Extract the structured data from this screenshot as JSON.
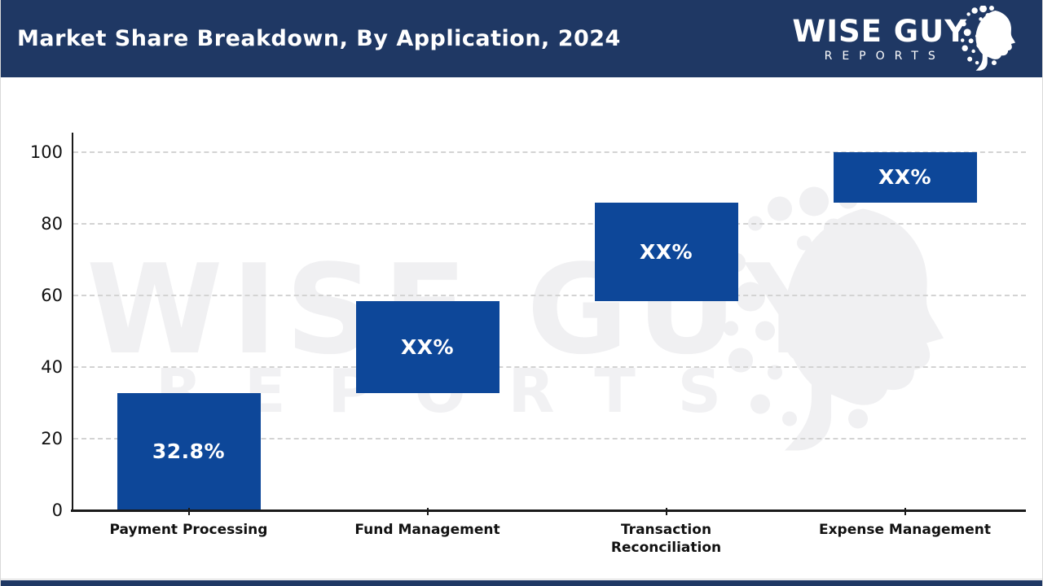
{
  "header": {
    "title": "Market Share Breakdown, By Application, 2024",
    "logo": {
      "name_line": "WISE GUY",
      "reports_line": "REPORTS"
    }
  },
  "watermark": {
    "name_line": "WISE GUY",
    "reports_line": "REPORTS"
  },
  "chart_data": {
    "type": "bar",
    "subtype": "waterfall market-share breakdown",
    "title": "Market Share Breakdown, By Application, 2024",
    "categories": [
      "Payment Processing",
      "Fund Management",
      "Transaction Reconciliation",
      "Expense Management"
    ],
    "segments": [
      {
        "category": "Payment Processing",
        "start": 0,
        "end": 32.8,
        "value_label": "32.8%"
      },
      {
        "category": "Fund Management",
        "start": 32.8,
        "end": 58.5,
        "value_label": "XX%"
      },
      {
        "category": "Transaction Reconciliation",
        "start": 58.5,
        "end": 86.0,
        "value_label": "XX%"
      },
      {
        "category": "Expense Management",
        "start": 86.0,
        "end": 100,
        "value_label": "XX%"
      }
    ],
    "ylim": [
      0,
      100
    ],
    "yticks": [
      0,
      20,
      40,
      60,
      80,
      100
    ],
    "xlabel": "",
    "ylabel": "",
    "grid": "horizontal dashed",
    "legend": "none"
  },
  "colors": {
    "header_bg": "#1f3864",
    "footer_bg": "#1f3864",
    "bar": "#0d4799",
    "bar_label": "#ffffff",
    "grid_line": "#d3d3d3",
    "axis": "#1a1a1a",
    "watermark": "#f0f0f2"
  }
}
